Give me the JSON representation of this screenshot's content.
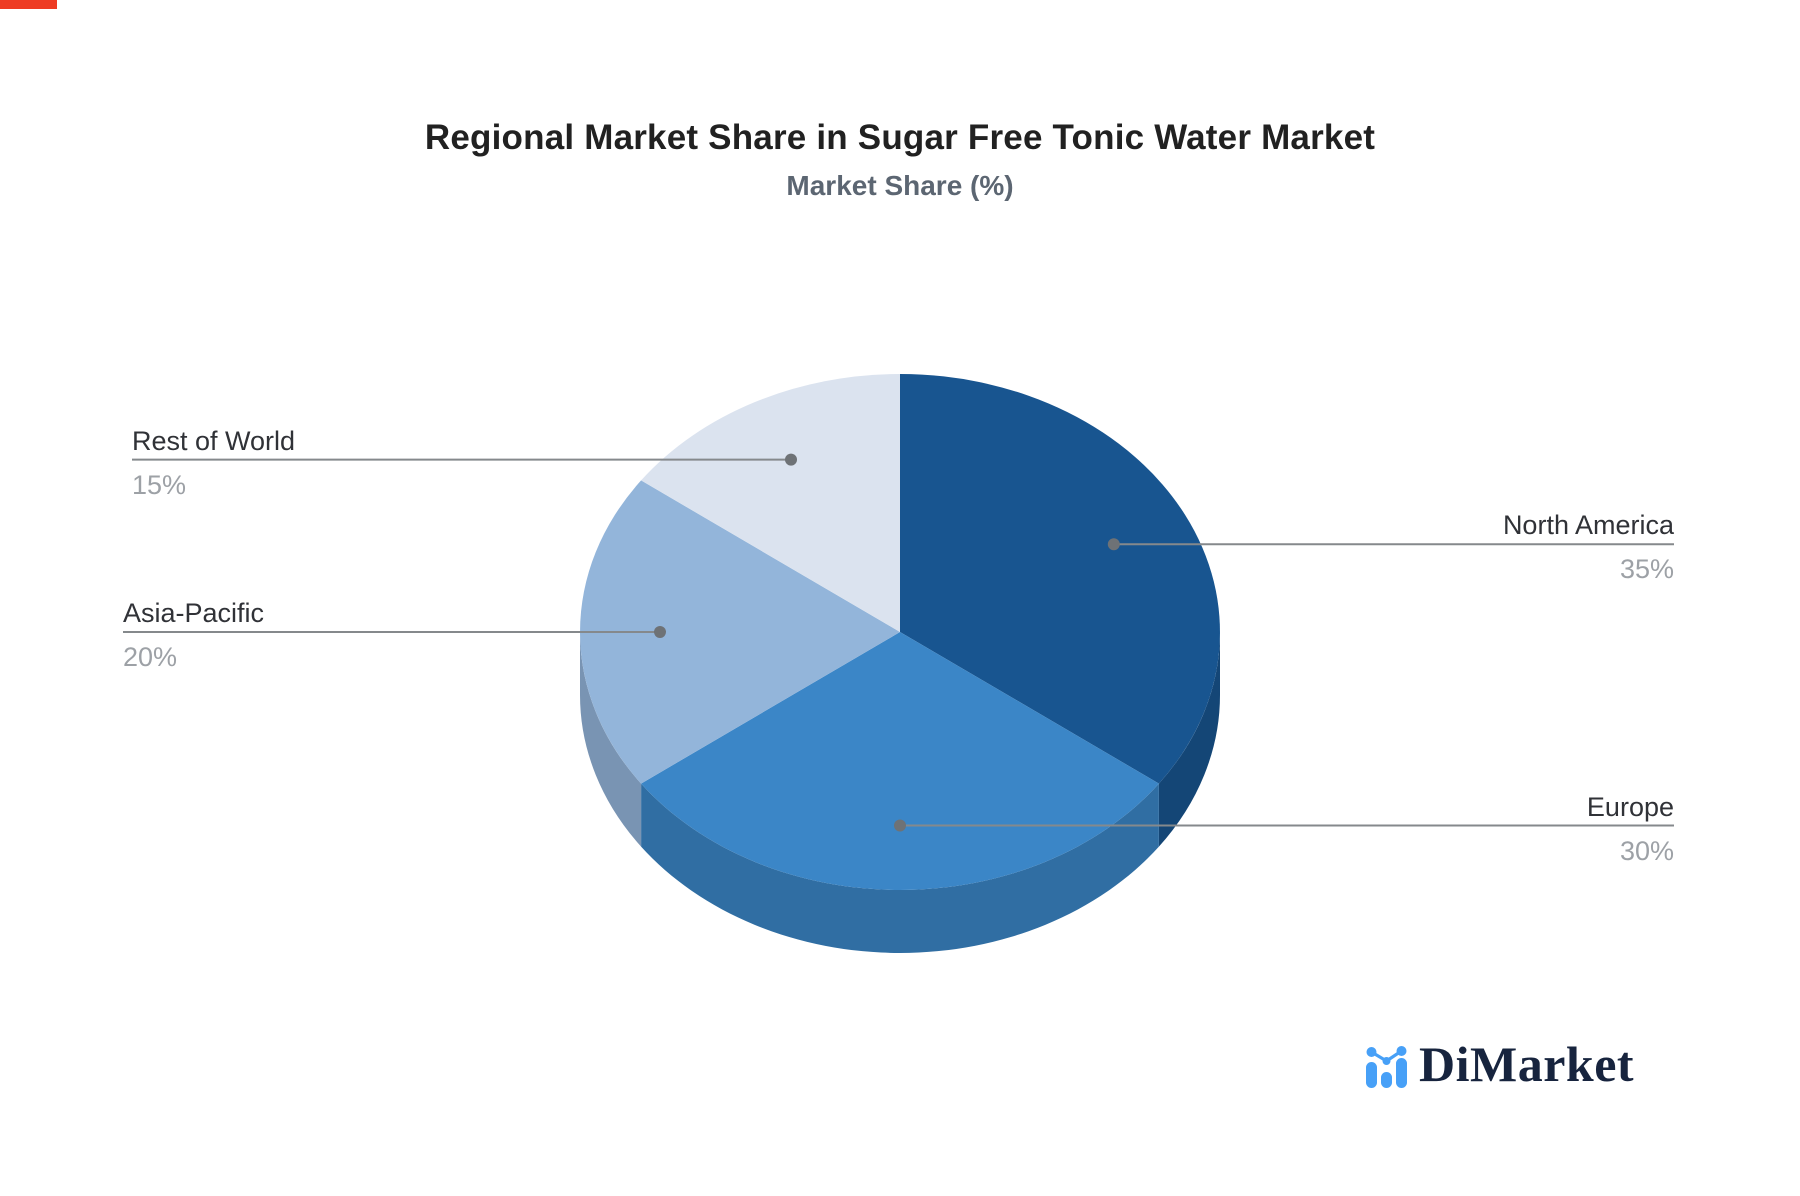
{
  "artifact": {
    "corner_mark_color": "#EE3B23"
  },
  "chart_data": {
    "type": "pie",
    "style": "3d",
    "title": "Regional Market Share in Sugar Free Tonic Water Market",
    "subtitle": "Market Share (%)",
    "labels": [
      "North America",
      "Europe",
      "Asia-Pacific",
      "Rest of World"
    ],
    "values": [
      35,
      30,
      20,
      15
    ],
    "value_labels": [
      "35%",
      "30%",
      "20%",
      "15%"
    ],
    "slice_colors": [
      "#185590",
      "#3B86C7",
      "#93B5DA",
      "#DBE3EF"
    ],
    "start_angle_deg": 0,
    "direction": "clockwise",
    "legend_position": "none",
    "label_style": "leader-lines",
    "leader_line_color": "#85898C",
    "leader_dot_color": "#6E7276",
    "label_color": "#303237",
    "value_color": "#9DA1A6",
    "title_color": "#212121",
    "subtitle_color": "#5C6672"
  },
  "branding": {
    "logo_text": "DiMarket",
    "logo_icon": "mini-bar-line-chart-icon",
    "logo_text_color": "#17243E",
    "logo_icon_color": "#47A0F7"
  }
}
